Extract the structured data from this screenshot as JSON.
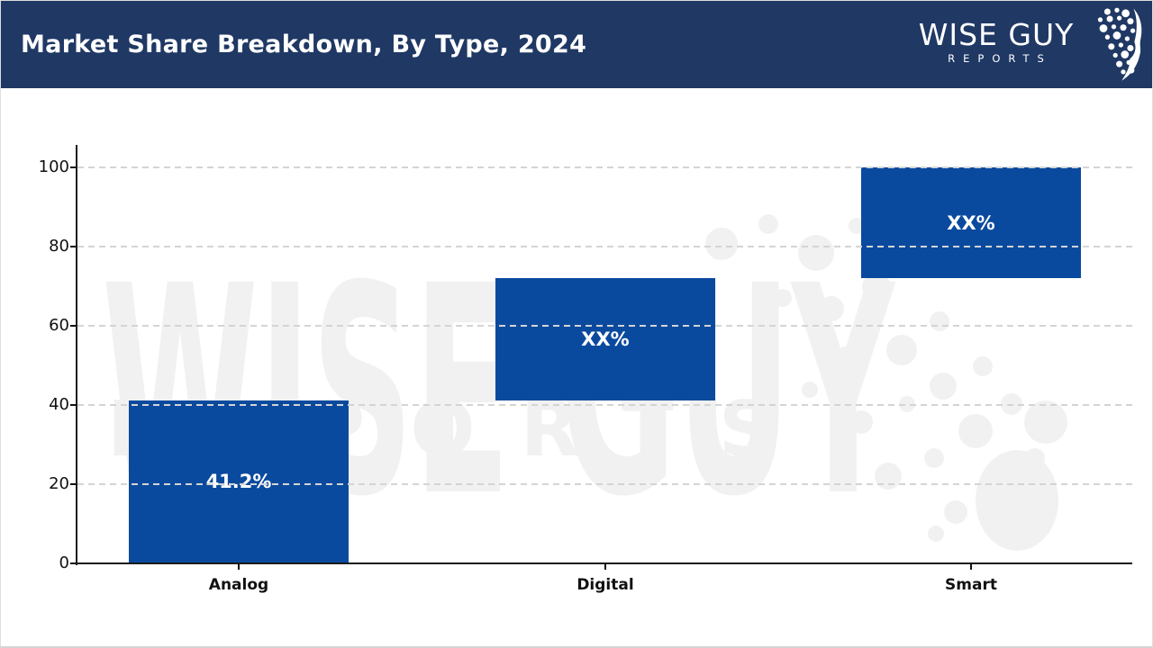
{
  "header": {
    "title": "Market Share Breakdown, By Type, 2024",
    "logo": {
      "wordmark": "WISE GUY",
      "subtitle": "REPORTS"
    }
  },
  "watermark": {
    "wordmark": "WISE GUY",
    "subtitle": "REPORTS"
  },
  "colors": {
    "header_bg": "#1f3864",
    "bar": "#0a4a9e",
    "grid": "#d4d4d4",
    "axis": "#1a1a1a",
    "bar_label": "#ffffff",
    "tick_label": "#111111",
    "watermark_tint": "#000000"
  },
  "chart_data": {
    "type": "bar",
    "variant": "waterfall-stacked-percentage",
    "title": "Market Share Breakdown, By Type, 2024",
    "categories": [
      "Analog",
      "Digital",
      "Smart"
    ],
    "segments": [
      {
        "category": "Analog",
        "start": 0,
        "end": 41.2,
        "value": 41.2,
        "label": "41.2%"
      },
      {
        "category": "Digital",
        "start": 41.2,
        "end": 72,
        "value": 30.8,
        "label": "XX%"
      },
      {
        "category": "Smart",
        "start": 72,
        "end": 100,
        "value": 28,
        "label": "XX%"
      }
    ],
    "y_ticks": [
      0,
      20,
      40,
      60,
      80,
      100
    ],
    "ylim": [
      0,
      100
    ],
    "xlabel": "",
    "ylabel": "",
    "grid": "horizontal-dashed",
    "legend": "none"
  }
}
